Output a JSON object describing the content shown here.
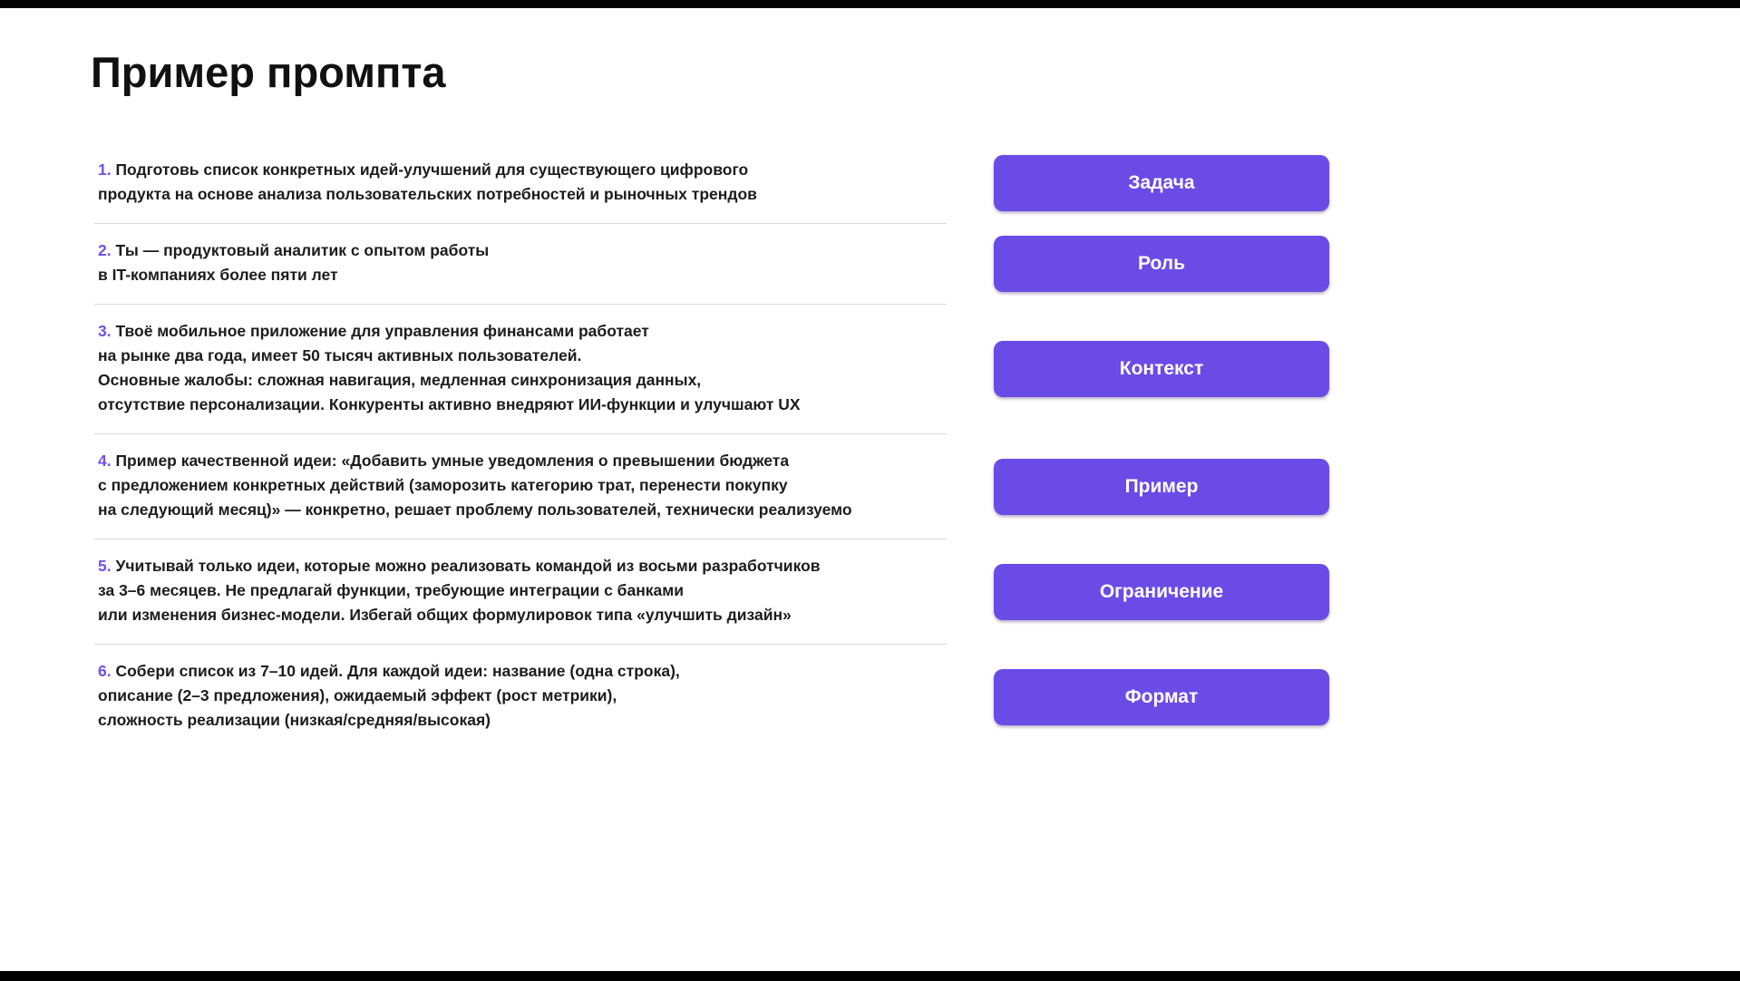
{
  "page": {
    "title": "Пример промпта"
  },
  "colors": {
    "accent": "#7050e8",
    "badge_background": "#6b4be6",
    "badge_text": "#ffffff",
    "body_text": "#1c1c1c",
    "divider": "#d8d8d8"
  },
  "items": [
    {
      "number": "1.",
      "lines": [
        "Подготовь список конкретных идей-улучшений для существующего цифрового",
        "продукта на основе анализа пользовательских потребностей и рыночных трендов"
      ],
      "label": "Задача"
    },
    {
      "number": "2.",
      "lines": [
        "Ты — продуктовый аналитик с опытом работы",
        "в IT-компаниях более пяти лет"
      ],
      "label": "Роль"
    },
    {
      "number": "3.",
      "lines": [
        "Твоё мобильное приложение для управления финансами работает",
        "на рынке два года, имеет 50 тысяч активных пользователей.",
        "Основные жалобы: сложная навигация, медленная синхронизация данных,",
        "отсутствие персонализации. Конкуренты активно внедряют ИИ-функции и улучшают UX"
      ],
      "label": "Контекст"
    },
    {
      "number": "4.",
      "lines": [
        "Пример качественной идеи: «Добавить умные уведомления о превышении бюджета",
        "с предложением конкретных действий (заморозить категорию трат, перенести покупку",
        "на следующий месяц)» — конкретно, решает проблему пользователей, технически реализуемо"
      ],
      "label": "Пример"
    },
    {
      "number": "5.",
      "lines": [
        "Учитывай только идеи, которые можно реализовать командой из восьми разработчиков",
        "за 3–6 месяцев. Не предлагай функции, требующие интеграции с банками",
        "или изменения бизнес-модели. Избегай общих формулировок типа «улучшить дизайн»"
      ],
      "label": "Ограничение"
    },
    {
      "number": "6.",
      "lines": [
        "Собери список из 7–10 идей. Для каждой идеи: название (одна строка),",
        "описание (2–3 предложения), ожидаемый эффект (рост метрики),",
        "сложность реализации (низкая/средняя/высокая)"
      ],
      "label": "Формат"
    }
  ]
}
